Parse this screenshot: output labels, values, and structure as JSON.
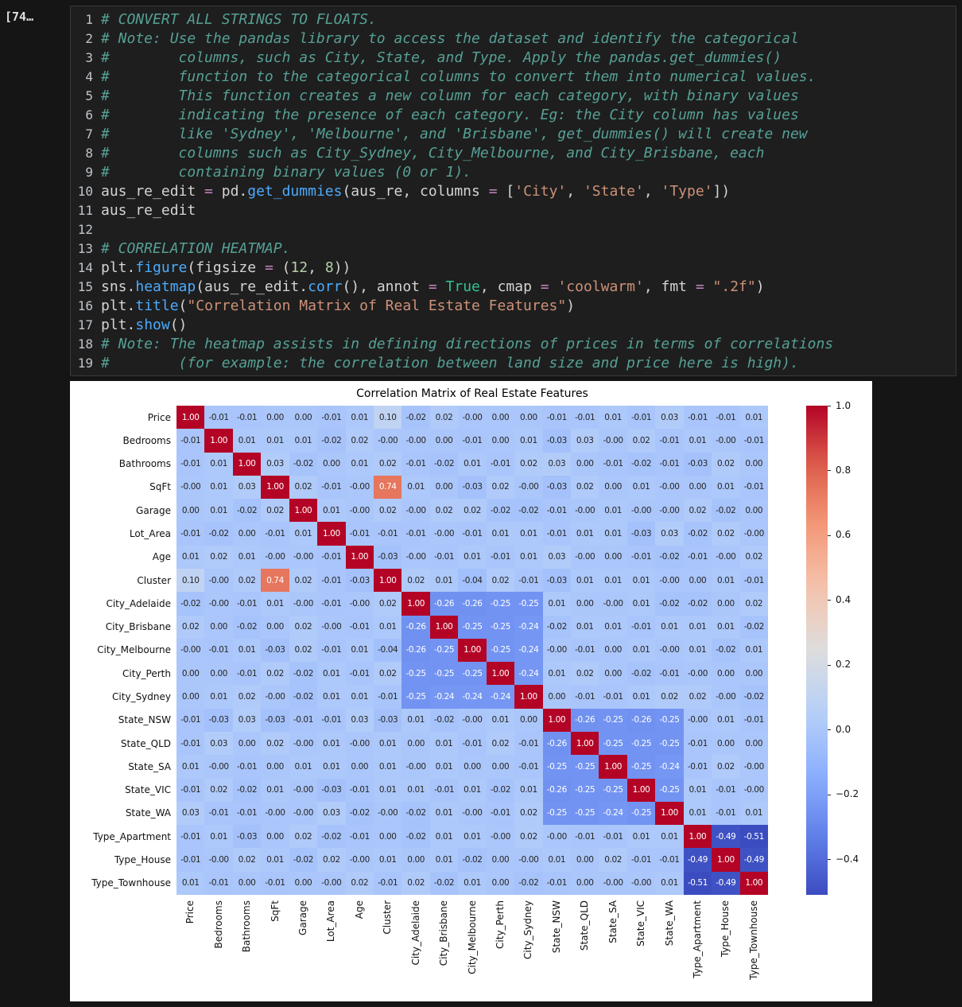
{
  "notebook": {
    "execution_label": "[74…",
    "cell": {
      "lines": [
        {
          "n": "1",
          "tokens": [
            [
              "c",
              "# CONVERT ALL STRINGS TO FLOATS."
            ]
          ]
        },
        {
          "n": "2",
          "tokens": [
            [
              "c",
              "# Note: Use the pandas library to access the dataset and identify the categorical"
            ]
          ]
        },
        {
          "n": "3",
          "tokens": [
            [
              "c",
              "#        columns, such as City, State, and Type. Apply the pandas.get_dummies()"
            ]
          ]
        },
        {
          "n": "4",
          "tokens": [
            [
              "c",
              "#        function to the categorical columns to convert them into numerical values."
            ]
          ]
        },
        {
          "n": "5",
          "tokens": [
            [
              "c",
              "#        This function creates a new column for each category, with binary values"
            ]
          ]
        },
        {
          "n": "6",
          "tokens": [
            [
              "c",
              "#        indicating the presence of each category. Eg: the City column has values"
            ]
          ]
        },
        {
          "n": "7",
          "tokens": [
            [
              "c",
              "#        like 'Sydney', 'Melbourne', and 'Brisbane', get_dummies() will create new"
            ]
          ]
        },
        {
          "n": "8",
          "tokens": [
            [
              "c",
              "#        columns such as City_Sydney, City_Melbourne, and City_Brisbane, each"
            ]
          ]
        },
        {
          "n": "9",
          "tokens": [
            [
              "c",
              "#        containing binary values (0 or 1)."
            ]
          ]
        },
        {
          "n": "10",
          "tokens": [
            [
              "v",
              "aus_re_edit "
            ],
            [
              "o",
              "="
            ],
            [
              "v",
              " pd."
            ],
            [
              "f",
              "get_dummies"
            ],
            [
              "v",
              "(aus_re, columns "
            ],
            [
              "o",
              "="
            ],
            [
              "v",
              " ["
            ],
            [
              "s",
              "'City'"
            ],
            [
              "v",
              ", "
            ],
            [
              "s",
              "'State'"
            ],
            [
              "v",
              ", "
            ],
            [
              "s",
              "'Type'"
            ],
            [
              "v",
              "])"
            ]
          ]
        },
        {
          "n": "11",
          "tokens": [
            [
              "v",
              "aus_re_edit"
            ]
          ]
        },
        {
          "n": "12",
          "tokens": []
        },
        {
          "n": "13",
          "tokens": [
            [
              "c",
              "# CORRELATION HEATMAP."
            ]
          ]
        },
        {
          "n": "14",
          "tokens": [
            [
              "v",
              "plt."
            ],
            [
              "f",
              "figure"
            ],
            [
              "v",
              "(figsize "
            ],
            [
              "o",
              "="
            ],
            [
              "v",
              " ("
            ],
            [
              "n",
              "12"
            ],
            [
              "v",
              ", "
            ],
            [
              "n",
              "8"
            ],
            [
              "v",
              "))"
            ]
          ]
        },
        {
          "n": "15",
          "tokens": [
            [
              "v",
              "sns."
            ],
            [
              "f",
              "heatmap"
            ],
            [
              "v",
              "(aus_re_edit."
            ],
            [
              "f",
              "corr"
            ],
            [
              "v",
              "(), annot "
            ],
            [
              "o",
              "="
            ],
            [
              "v",
              " "
            ],
            [
              "k",
              "True"
            ],
            [
              "v",
              ", cmap "
            ],
            [
              "o",
              "="
            ],
            [
              "v",
              " "
            ],
            [
              "s",
              "'coolwarm'"
            ],
            [
              "v",
              ", fmt "
            ],
            [
              "o",
              "="
            ],
            [
              "v",
              " "
            ],
            [
              "s",
              "\".2f\""
            ],
            [
              "v",
              ")"
            ]
          ]
        },
        {
          "n": "16",
          "tokens": [
            [
              "v",
              "plt."
            ],
            [
              "f",
              "title"
            ],
            [
              "v",
              "("
            ],
            [
              "s",
              "\"Correlation Matrix of Real Estate Features\""
            ],
            [
              "v",
              ")"
            ]
          ]
        },
        {
          "n": "17",
          "tokens": [
            [
              "v",
              "plt."
            ],
            [
              "f",
              "show"
            ],
            [
              "v",
              "()"
            ]
          ]
        },
        {
          "n": "18",
          "tokens": [
            [
              "c",
              "# Note: The heatmap assists in defining directions of prices in terms of correlations"
            ]
          ]
        },
        {
          "n": "19",
          "tokens": [
            [
              "c",
              "#        (for example: the correlation between land size and price here is high)."
            ]
          ]
        }
      ]
    }
  },
  "chart_data": {
    "type": "heatmap",
    "title": "Correlation Matrix of Real Estate Features",
    "cmap": "coolwarm",
    "vmin": -0.51,
    "vmax": 1.0,
    "legend_position": "right-colorbar",
    "labels": [
      "Price",
      "Bedrooms",
      "Bathrooms",
      "SqFt",
      "Garage",
      "Lot_Area",
      "Age",
      "Cluster",
      "City_Adelaide",
      "City_Brisbane",
      "City_Melbourne",
      "City_Perth",
      "City_Sydney",
      "State_NSW",
      "State_QLD",
      "State_SA",
      "State_VIC",
      "State_WA",
      "Type_Apartment",
      "Type_House",
      "Type_Townhouse"
    ],
    "matrix": [
      [
        "1.00",
        "-0.01",
        "-0.01",
        "0.00",
        "0.00",
        "-0.01",
        "0.01",
        "0.10",
        "-0.02",
        "0.02",
        "-0.00",
        "0.00",
        "0.00",
        "-0.01",
        "-0.01",
        "0.01",
        "-0.01",
        "0.03",
        "-0.01",
        "-0.01",
        "0.01"
      ],
      [
        "-0.01",
        "1.00",
        "0.01",
        "0.01",
        "0.01",
        "-0.02",
        "0.02",
        "-0.00",
        "-0.00",
        "0.00",
        "-0.01",
        "0.00",
        "0.01",
        "-0.03",
        "0.03",
        "-0.00",
        "0.02",
        "-0.01",
        "0.01",
        "-0.00",
        "-0.01"
      ],
      [
        "-0.01",
        "0.01",
        "1.00",
        "0.03",
        "-0.02",
        "0.00",
        "0.01",
        "0.02",
        "-0.01",
        "-0.02",
        "0.01",
        "-0.01",
        "0.02",
        "0.03",
        "0.00",
        "-0.01",
        "-0.02",
        "-0.01",
        "-0.03",
        "0.02",
        "0.00"
      ],
      [
        "-0.00",
        "0.01",
        "0.03",
        "1.00",
        "0.02",
        "-0.01",
        "-0.00",
        "0.74",
        "0.01",
        "0.00",
        "-0.03",
        "0.02",
        "-0.00",
        "-0.03",
        "0.02",
        "0.00",
        "0.01",
        "-0.00",
        "0.00",
        "0.01",
        "-0.01"
      ],
      [
        "0.00",
        "0.01",
        "-0.02",
        "0.02",
        "1.00",
        "0.01",
        "-0.00",
        "0.02",
        "-0.00",
        "0.02",
        "0.02",
        "-0.02",
        "-0.02",
        "-0.01",
        "-0.00",
        "0.01",
        "-0.00",
        "-0.00",
        "0.02",
        "-0.02",
        "0.00"
      ],
      [
        "-0.01",
        "-0.02",
        "0.00",
        "-0.01",
        "0.01",
        "1.00",
        "-0.01",
        "-0.01",
        "-0.01",
        "-0.00",
        "-0.01",
        "0.01",
        "0.01",
        "-0.01",
        "0.01",
        "0.01",
        "-0.03",
        "0.03",
        "-0.02",
        "0.02",
        "-0.00"
      ],
      [
        "0.01",
        "0.02",
        "0.01",
        "-0.00",
        "-0.00",
        "-0.01",
        "1.00",
        "-0.03",
        "-0.00",
        "-0.01",
        "0.01",
        "-0.01",
        "0.01",
        "0.03",
        "-0.00",
        "0.00",
        "-0.01",
        "-0.02",
        "-0.01",
        "-0.00",
        "0.02"
      ],
      [
        "0.10",
        "-0.00",
        "0.02",
        "0.74",
        "0.02",
        "-0.01",
        "-0.03",
        "1.00",
        "0.02",
        "0.01",
        "-0.04",
        "0.02",
        "-0.01",
        "-0.03",
        "0.01",
        "0.01",
        "0.01",
        "-0.00",
        "0.00",
        "0.01",
        "-0.01"
      ],
      [
        "-0.02",
        "-0.00",
        "-0.01",
        "0.01",
        "-0.00",
        "-0.01",
        "-0.00",
        "0.02",
        "1.00",
        "-0.26",
        "-0.26",
        "-0.25",
        "-0.25",
        "0.01",
        "0.00",
        "-0.00",
        "0.01",
        "-0.02",
        "-0.02",
        "0.00",
        "0.02"
      ],
      [
        "0.02",
        "0.00",
        "-0.02",
        "0.00",
        "0.02",
        "-0.00",
        "-0.01",
        "0.01",
        "-0.26",
        "1.00",
        "-0.25",
        "-0.25",
        "-0.24",
        "-0.02",
        "0.01",
        "0.01",
        "-0.01",
        "0.01",
        "0.01",
        "0.01",
        "-0.02"
      ],
      [
        "-0.00",
        "-0.01",
        "0.01",
        "-0.03",
        "0.02",
        "-0.01",
        "0.01",
        "-0.04",
        "-0.26",
        "-0.25",
        "1.00",
        "-0.25",
        "-0.24",
        "-0.00",
        "-0.01",
        "0.00",
        "0.01",
        "-0.00",
        "0.01",
        "-0.02",
        "0.01"
      ],
      [
        "0.00",
        "0.00",
        "-0.01",
        "0.02",
        "-0.02",
        "0.01",
        "-0.01",
        "0.02",
        "-0.25",
        "-0.25",
        "-0.25",
        "1.00",
        "-0.24",
        "0.01",
        "0.02",
        "0.00",
        "-0.02",
        "-0.01",
        "-0.00",
        "0.00",
        "0.00"
      ],
      [
        "0.00",
        "0.01",
        "0.02",
        "-0.00",
        "-0.02",
        "0.01",
        "0.01",
        "-0.01",
        "-0.25",
        "-0.24",
        "-0.24",
        "-0.24",
        "1.00",
        "0.00",
        "-0.01",
        "-0.01",
        "0.01",
        "0.02",
        "0.02",
        "-0.00",
        "-0.02"
      ],
      [
        "-0.01",
        "-0.03",
        "0.03",
        "-0.03",
        "-0.01",
        "-0.01",
        "0.03",
        "-0.03",
        "0.01",
        "-0.02",
        "-0.00",
        "0.01",
        "0.00",
        "1.00",
        "-0.26",
        "-0.25",
        "-0.26",
        "-0.25",
        "-0.00",
        "0.01",
        "-0.01"
      ],
      [
        "-0.01",
        "0.03",
        "0.00",
        "0.02",
        "-0.00",
        "0.01",
        "-0.00",
        "0.01",
        "0.00",
        "0.01",
        "-0.01",
        "0.02",
        "-0.01",
        "-0.26",
        "1.00",
        "-0.25",
        "-0.25",
        "-0.25",
        "-0.01",
        "0.00",
        "0.00"
      ],
      [
        "0.01",
        "-0.00",
        "-0.01",
        "0.00",
        "0.01",
        "0.01",
        "0.00",
        "0.01",
        "-0.00",
        "0.01",
        "0.00",
        "0.00",
        "-0.01",
        "-0.25",
        "-0.25",
        "1.00",
        "-0.25",
        "-0.24",
        "-0.01",
        "0.02",
        "-0.00"
      ],
      [
        "-0.01",
        "0.02",
        "-0.02",
        "0.01",
        "-0.00",
        "-0.03",
        "-0.01",
        "0.01",
        "0.01",
        "-0.01",
        "0.01",
        "-0.02",
        "0.01",
        "-0.26",
        "-0.25",
        "-0.25",
        "1.00",
        "-0.25",
        "0.01",
        "-0.01",
        "-0.00"
      ],
      [
        "0.03",
        "-0.01",
        "-0.01",
        "-0.00",
        "-0.00",
        "0.03",
        "-0.02",
        "-0.00",
        "-0.02",
        "0.01",
        "-0.00",
        "-0.01",
        "0.02",
        "-0.25",
        "-0.25",
        "-0.24",
        "-0.25",
        "1.00",
        "0.01",
        "-0.01",
        "0.01"
      ],
      [
        "-0.01",
        "0.01",
        "-0.03",
        "0.00",
        "0.02",
        "-0.02",
        "-0.01",
        "0.00",
        "-0.02",
        "0.01",
        "0.01",
        "-0.00",
        "0.02",
        "-0.00",
        "-0.01",
        "-0.01",
        "0.01",
        "0.01",
        "1.00",
        "-0.49",
        "-0.51"
      ],
      [
        "-0.01",
        "-0.00",
        "0.02",
        "0.01",
        "-0.02",
        "0.02",
        "-0.00",
        "0.01",
        "0.00",
        "0.01",
        "-0.02",
        "0.00",
        "-0.00",
        "0.01",
        "0.00",
        "0.02",
        "-0.01",
        "-0.01",
        "-0.49",
        "1.00",
        "-0.49"
      ],
      [
        "0.01",
        "-0.01",
        "0.00",
        "-0.01",
        "0.00",
        "-0.00",
        "0.02",
        "-0.01",
        "0.02",
        "-0.02",
        "0.01",
        "0.00",
        "-0.02",
        "-0.01",
        "0.00",
        "-0.00",
        "-0.00",
        "0.01",
        "-0.51",
        "-0.49",
        "1.00"
      ]
    ],
    "colorbar_ticks": [
      {
        "label": "1.0",
        "value": 1.0
      },
      {
        "label": "0.8",
        "value": 0.8
      },
      {
        "label": "0.6",
        "value": 0.6
      },
      {
        "label": "0.4",
        "value": 0.4
      },
      {
        "label": "0.2",
        "value": 0.2
      },
      {
        "label": "0.0",
        "value": 0.0
      },
      {
        "label": "−0.2",
        "value": -0.2
      },
      {
        "label": "−0.4",
        "value": -0.4
      }
    ]
  }
}
